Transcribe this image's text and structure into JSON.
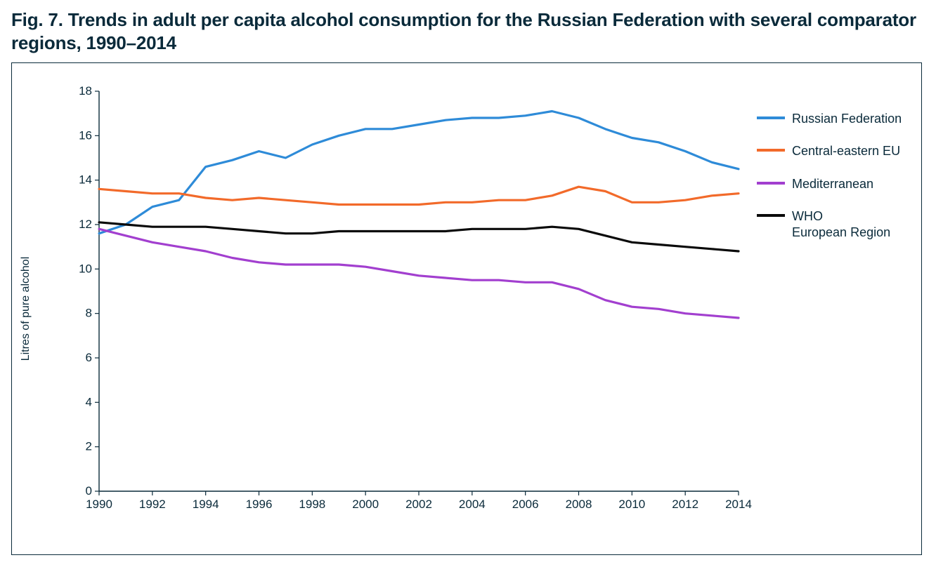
{
  "title": "Fig. 7. Trends in adult per capita alcohol consumption for the Russian Federation with several comparator regions, 1990–2014",
  "chart": {
    "type": "line",
    "background_color": "#ffffff",
    "frame_border_color": "#0a2a3a",
    "axis": {
      "xlim": [
        1990,
        2014
      ],
      "ylim": [
        0,
        18
      ],
      "xtick_step": 2,
      "ytick_step": 2,
      "xticks": [
        1990,
        1992,
        1994,
        1996,
        1998,
        2000,
        2002,
        2004,
        2006,
        2008,
        2010,
        2012,
        2014
      ],
      "yticks": [
        0,
        2,
        4,
        6,
        8,
        10,
        12,
        14,
        16,
        18
      ],
      "axis_color": "#0a2a3a",
      "tick_font_size": 17,
      "ylabel": "Litres of pure alcohol",
      "ylabel_font_size": 16,
      "grid": false
    },
    "line_width": 3.2,
    "years": [
      1990,
      1991,
      1992,
      1993,
      1994,
      1995,
      1996,
      1997,
      1998,
      1999,
      2000,
      2001,
      2002,
      2003,
      2004,
      2005,
      2006,
      2007,
      2008,
      2009,
      2010,
      2011,
      2012,
      2013,
      2014
    ],
    "series": [
      {
        "id": "russian_federation",
        "label": "Russian Federation",
        "color": "#2e8bd8",
        "values": [
          11.6,
          12.0,
          12.8,
          13.1,
          14.6,
          14.9,
          15.3,
          15.0,
          15.6,
          16.0,
          16.3,
          16.3,
          16.5,
          16.7,
          16.8,
          16.8,
          16.9,
          17.1,
          16.8,
          16.3,
          15.9,
          15.7,
          15.3,
          14.8,
          14.5
        ]
      },
      {
        "id": "central_eastern_eu",
        "label": "Central-eastern EU",
        "color": "#f26a2a",
        "values": [
          13.6,
          13.5,
          13.4,
          13.4,
          13.2,
          13.1,
          13.2,
          13.1,
          13.0,
          12.9,
          12.9,
          12.9,
          12.9,
          13.0,
          13.0,
          13.1,
          13.1,
          13.3,
          13.7,
          13.5,
          13.0,
          13.0,
          13.1,
          13.3,
          13.4
        ]
      },
      {
        "id": "mediterranean",
        "label": "Mediterranean",
        "color": "#a23fcf",
        "values": [
          11.8,
          11.5,
          11.2,
          11.0,
          10.8,
          10.5,
          10.3,
          10.2,
          10.2,
          10.2,
          10.1,
          9.9,
          9.7,
          9.6,
          9.5,
          9.5,
          9.4,
          9.4,
          9.1,
          8.6,
          8.3,
          8.2,
          8.0,
          7.9,
          7.8
        ]
      },
      {
        "id": "who_european_region",
        "label": "WHO\nEuropean Region",
        "color": "#0a0a0a",
        "values": [
          12.1,
          12.0,
          11.9,
          11.9,
          11.9,
          11.8,
          11.7,
          11.6,
          11.6,
          11.7,
          11.7,
          11.7,
          11.7,
          11.7,
          11.8,
          11.8,
          11.8,
          11.9,
          11.8,
          11.5,
          11.2,
          11.1,
          11.0,
          10.9,
          10.8
        ]
      }
    ],
    "legend": {
      "position": "right",
      "swatch_width": 40,
      "swatch_height": 4,
      "font_size": 18,
      "text_color": "#0a2a3a",
      "item_gap": 24
    }
  }
}
